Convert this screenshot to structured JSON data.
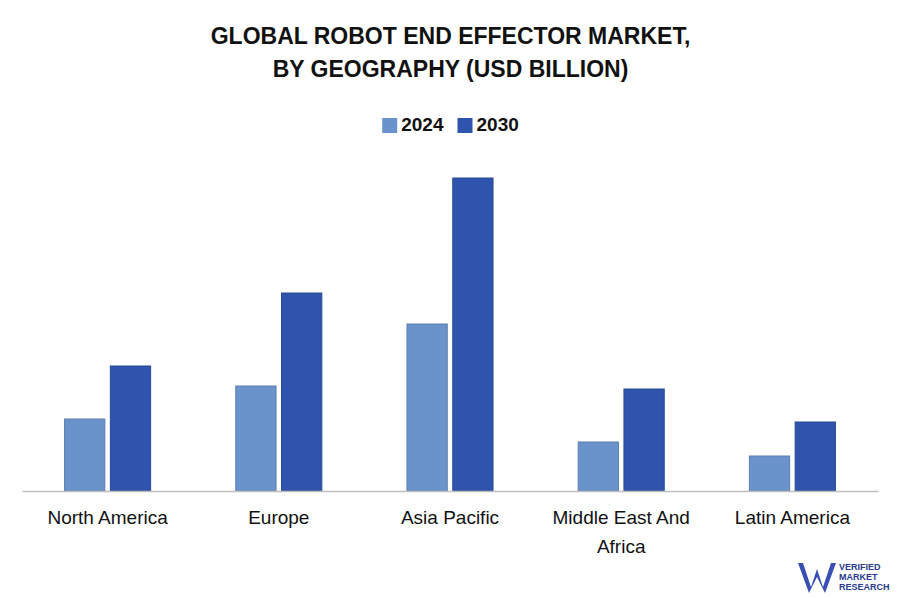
{
  "chart_data": {
    "type": "bar",
    "title": "GLOBAL ROBOT END EFFECTOR MARKET,\nBY GEOGRAPHY (USD BILLION)",
    "categories": [
      "North America",
      "Europe",
      "Asia Pacific",
      "Middle East And Africa",
      "Latin America"
    ],
    "series": [
      {
        "name": "2024",
        "color": "#6a93cb",
        "values": [
          0.72,
          1.05,
          1.67,
          0.49,
          0.35
        ]
      },
      {
        "name": "2030",
        "color": "#2f54ad",
        "values": [
          1.25,
          1.98,
          3.13,
          1.02,
          0.69
        ]
      }
    ],
    "ylim": [
      0,
      3.5
    ],
    "tick_labels": "x",
    "grid": false,
    "legend": "top",
    "annotations": [
      "VERIFIED",
      "MARKET",
      "RESEARCH"
    ]
  }
}
